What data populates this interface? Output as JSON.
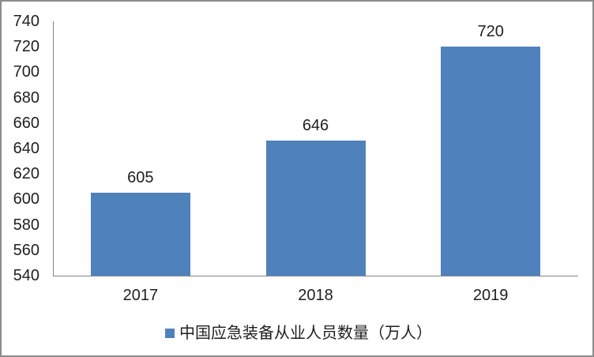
{
  "chart_data": {
    "type": "bar",
    "title": "",
    "categories": [
      "2017",
      "2018",
      "2019"
    ],
    "values": [
      605,
      646,
      720
    ],
    "legend": "中国应急装备从业人员数量（万人）",
    "legend_position": "bottom",
    "xlabel": "",
    "ylabel": "",
    "ylim": [
      540,
      740
    ],
    "yticks": [
      540,
      560,
      580,
      600,
      620,
      640,
      660,
      680,
      700,
      720,
      740
    ],
    "grid": false,
    "bar_color": "#4F81BD",
    "axis_color": "#848484",
    "text_color": "#1F1F1F",
    "frame_border_color": "#8C8C8C"
  }
}
